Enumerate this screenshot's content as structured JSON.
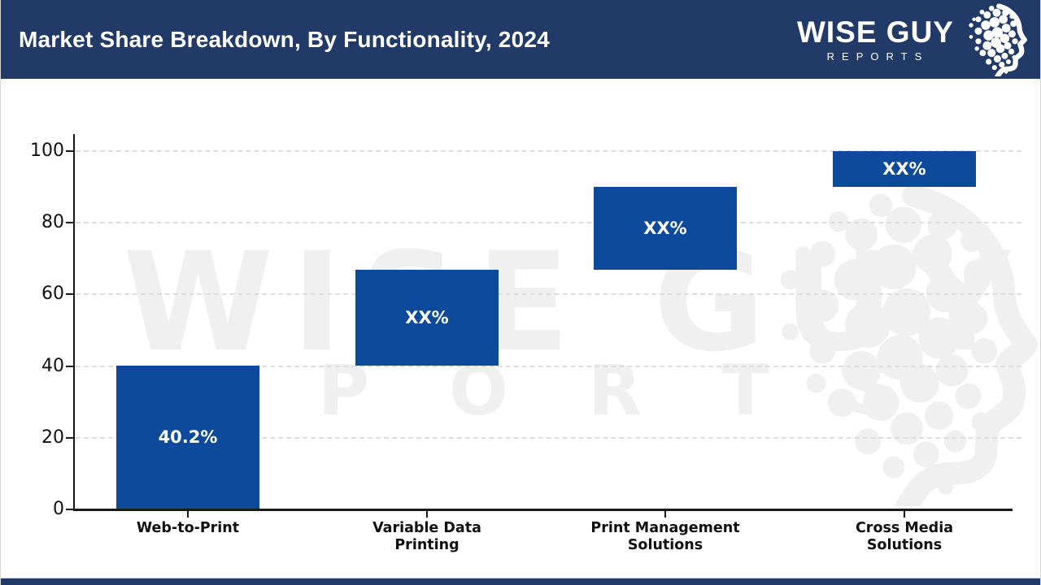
{
  "header": {
    "title": "Market Share Breakdown, By Functionality, 2024",
    "brand": {
      "line1": "WISE GUY",
      "line2": "REPORTS"
    }
  },
  "watermark": {
    "line1": "WISE GUY",
    "line2": "P O R T S"
  },
  "chart_data": {
    "type": "bar",
    "variant": "floating-waterfall",
    "title": "Market Share Breakdown, By Functionality, 2024",
    "categories": [
      "Web-to-Print",
      "Variable Data Printing",
      "Print Management Solutions",
      "Cross Media Solutions"
    ],
    "category_lines": [
      [
        "Web-to-Print"
      ],
      [
        "Variable Data",
        "Printing"
      ],
      [
        "Print Management",
        "Solutions"
      ],
      [
        "Cross Media",
        "Solutions"
      ]
    ],
    "series": [
      {
        "name": "Market share (%)",
        "values": [
          {
            "category": "Web-to-Print",
            "start": 0,
            "end": 40.2,
            "label": "40.2%"
          },
          {
            "category": "Variable Data Printing",
            "start": 40.2,
            "end": 66.8,
            "label": "XX%"
          },
          {
            "category": "Print Management Solutions",
            "start": 66.8,
            "end": 90,
            "label": "XX%"
          },
          {
            "category": "Cross Media Solutions",
            "start": 90,
            "end": 100,
            "label": "XX%"
          }
        ]
      }
    ],
    "xlabel": "",
    "ylabel": "",
    "ylim": [
      0,
      100
    ],
    "yticks": [
      0,
      20,
      40,
      60,
      80,
      100
    ],
    "grid": "horizontal-dashed",
    "legend": "none",
    "bar_color": "#0d4a9c",
    "header_color": "#213a68",
    "value_label_color": "#ffffff"
  }
}
